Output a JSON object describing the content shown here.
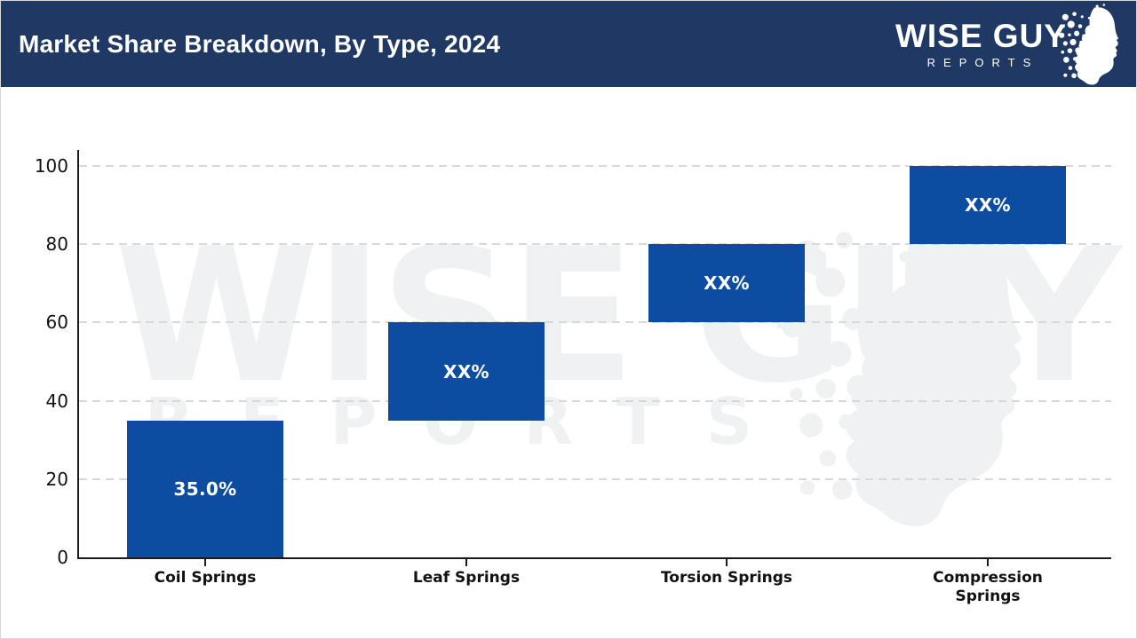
{
  "header": {
    "title": "Market Share Breakdown, By Type, 2024",
    "bg_color": "#1f3864",
    "logo": {
      "line1": "WISE GUY",
      "line2": "REPORTS"
    }
  },
  "watermark": {
    "line1": "WISE GUY",
    "line2": "REPORTS",
    "color": "#f0f1f3"
  },
  "chart_data": {
    "type": "bar",
    "subtype": "waterfall",
    "title": "Market Share Breakdown, By Type, 2024",
    "xlabel": "",
    "ylabel": "",
    "categories": [
      "Coil Springs",
      "Leaf Springs",
      "Torsion Springs",
      "Compression\nSprings"
    ],
    "segments": [
      {
        "category": "Coil Springs",
        "start": 0,
        "end": 35,
        "label": "35.0%"
      },
      {
        "category": "Leaf Springs",
        "start": 35,
        "end": 60,
        "label": "XX%"
      },
      {
        "category": "Torsion Springs",
        "start": 60,
        "end": 80,
        "label": "XX%"
      },
      {
        "category": "Compression\nSprings",
        "start": 80,
        "end": 100,
        "label": "XX%"
      }
    ],
    "yticks": [
      0,
      20,
      40,
      60,
      80,
      100
    ],
    "ylim": [
      0,
      104
    ],
    "grid": "horizontal dashed",
    "legend": "none",
    "bar_color": "#0c4da2",
    "bar_label_color": "#ffffff",
    "grid_color": "#d8d8d8",
    "axis_color": "#1a1a1a"
  }
}
